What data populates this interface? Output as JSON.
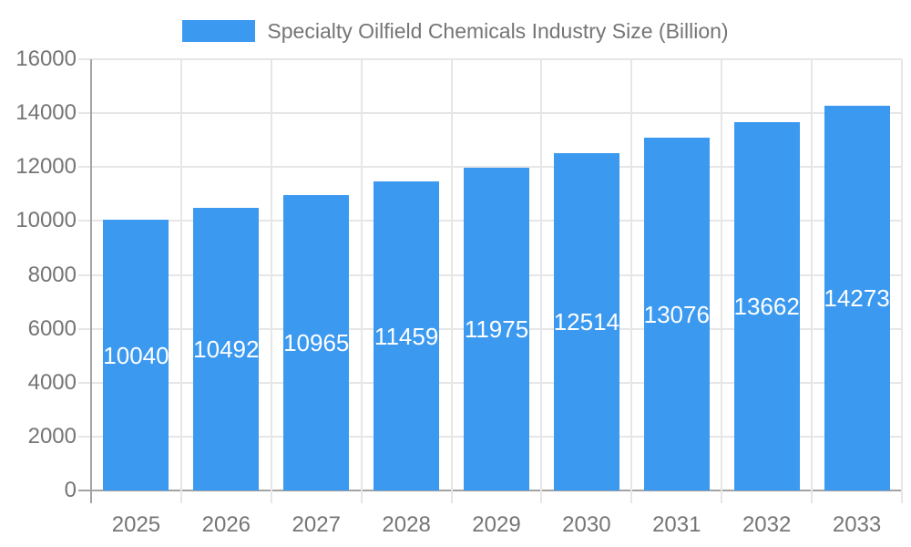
{
  "legend": {
    "label": "Specialty Oilfield Chemicals Industry Size (Billion)"
  },
  "colors": {
    "bar": "#3B99F0",
    "grid": "#e6e6e6",
    "axis": "#a3a3a3",
    "tick_text": "#757575",
    "legend_text": "#757575",
    "value_text": "#ffffff",
    "background": "#ffffff"
  },
  "chart_data": {
    "type": "bar",
    "title": "Specialty Oilfield Chemicals Industry Size (Billion)",
    "categories": [
      "2025",
      "2026",
      "2027",
      "2028",
      "2029",
      "2030",
      "2031",
      "2032",
      "2033"
    ],
    "values": [
      10040,
      10492,
      10965,
      11459,
      11975,
      12514,
      13076,
      13662,
      14273
    ],
    "series_name": "Specialty Oilfield Chemicals Industry Size (Billion)",
    "xlabel": "",
    "ylabel": "",
    "ylim": [
      0,
      16000
    ],
    "ytick_step": 2000,
    "ytick_labels": [
      "0",
      "2000",
      "4000",
      "6000",
      "8000",
      "10000",
      "12000",
      "14000",
      "16000"
    ],
    "grid": true,
    "legend_position": "top",
    "value_labels": "inside-center"
  }
}
